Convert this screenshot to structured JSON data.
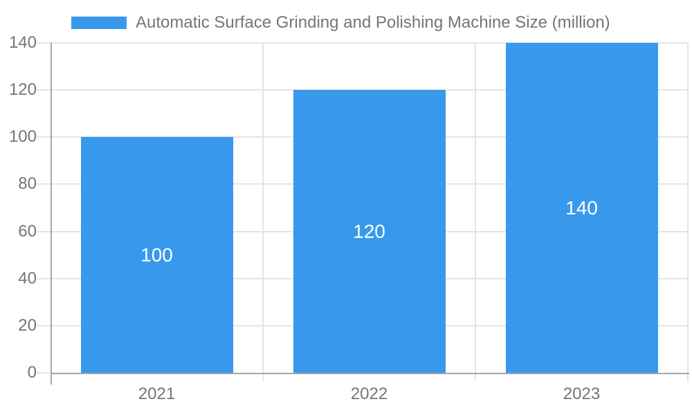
{
  "chart_data": {
    "type": "bar",
    "title": "",
    "categories": [
      "2021",
      "2022",
      "2023"
    ],
    "series": [
      {
        "name": "Automatic Surface Grinding and Polishing Machine Size (million)",
        "values": [
          100,
          120,
          140
        ],
        "color": "#3899EC"
      }
    ],
    "data_labels": [
      "100",
      "120",
      "140"
    ],
    "xlabel": "",
    "ylabel": "",
    "ylim": [
      0,
      140
    ],
    "yticks": [
      0,
      20,
      40,
      60,
      80,
      100,
      120,
      140
    ],
    "grid": "horizontal gridlines plus vertical category-boundary gridlines",
    "legend_position": "top-left",
    "colors": {
      "bar": "#3899EC",
      "data_label_text": "#FFFFFF",
      "axis_text": "#757575",
      "grid_line": "#E4E4E4",
      "axis_line": "#A6A6A6",
      "background": "#FFFFFF"
    }
  },
  "legend": {
    "label": "Automatic Surface Grinding and Polishing Machine Size (million)",
    "swatch_color": "#3899EC"
  }
}
